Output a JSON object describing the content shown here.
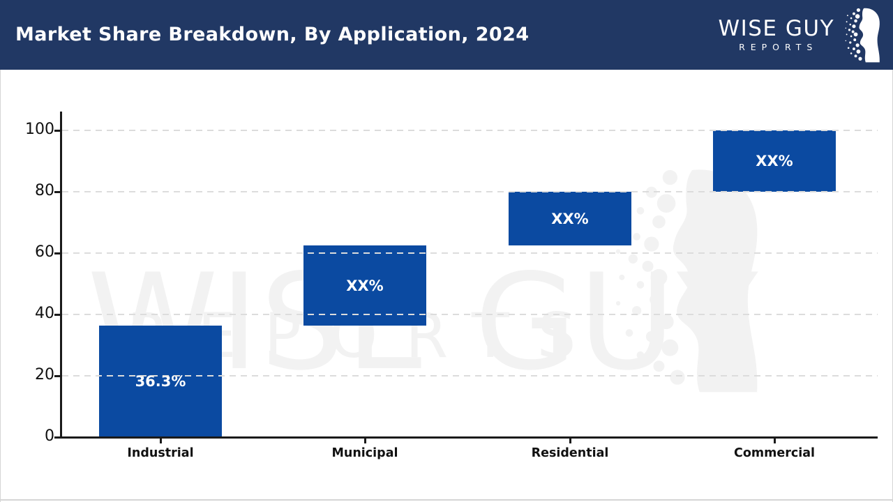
{
  "header": {
    "title": "Market Share Breakdown, By Application, 2024",
    "logo": {
      "line1": "WISE GUY",
      "line2": "REPORTS"
    }
  },
  "watermark": {
    "line1": "WISE GUY",
    "line2": "REPORTS"
  },
  "chart_data": {
    "type": "bar",
    "subtype": "floating-segment-waterfall",
    "title": "Market Share Breakdown, By Application, 2024",
    "categories": [
      "Industrial",
      "Municipal",
      "Residential",
      "Commercial"
    ],
    "segments": [
      {
        "category": "Industrial",
        "start": 0,
        "end": 36.3,
        "label": "36.3%"
      },
      {
        "category": "Municipal",
        "start": 36.3,
        "end": 62.5,
        "label": "XX%"
      },
      {
        "category": "Residential",
        "start": 62.5,
        "end": 80,
        "label": "XX%"
      },
      {
        "category": "Commercial",
        "start": 80,
        "end": 100,
        "label": "XX%"
      }
    ],
    "xlabel": "",
    "ylabel": "",
    "ylim": [
      0,
      100
    ],
    "yticks": [
      0,
      20,
      40,
      60,
      80,
      100
    ],
    "grid": "horizontal-dashed",
    "legend": "none"
  },
  "colors": {
    "header_bg": "#213864",
    "bar": "#0b4aa1",
    "bar_label": "#ffffff",
    "axis": "#1a1a1a",
    "grid": "#dcdcdc",
    "watermark": "#f2f2f2",
    "tick_text": "#111111"
  }
}
